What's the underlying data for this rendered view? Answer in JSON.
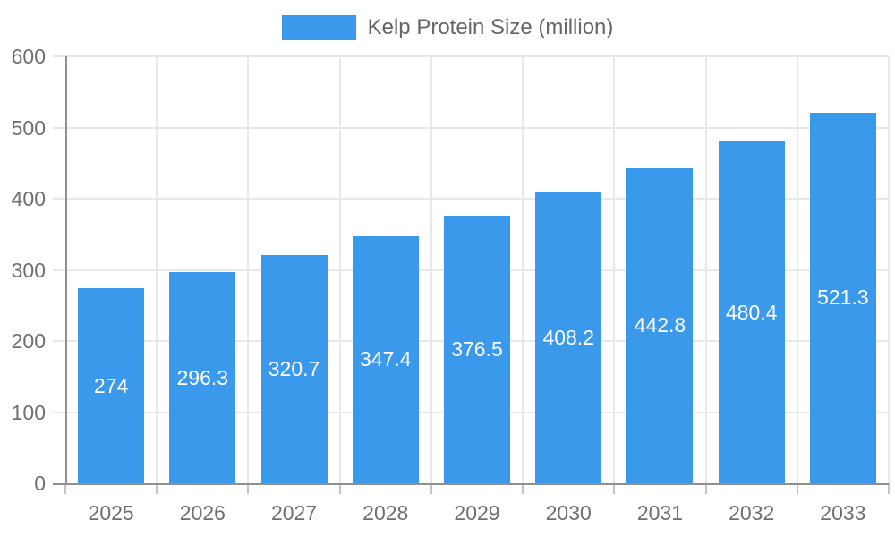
{
  "chart_data": {
    "type": "bar",
    "title": "",
    "xlabel": "",
    "ylabel": "",
    "legend": {
      "label": "Kelp Protein Size (million)",
      "position": "top"
    },
    "categories": [
      "2025",
      "2026",
      "2027",
      "2028",
      "2029",
      "2030",
      "2031",
      "2032",
      "2033"
    ],
    "series": [
      {
        "name": "Kelp Protein Size (million)",
        "values": [
          274,
          296.3,
          320.7,
          347.4,
          376.5,
          408.2,
          442.8,
          480.4,
          521.3
        ]
      }
    ],
    "value_labels": [
      "274",
      "296.3",
      "320.7",
      "347.4",
      "376.5",
      "408.2",
      "442.8",
      "480.4",
      "521.3"
    ],
    "ylim": [
      0,
      600
    ],
    "yticks": [
      0,
      100,
      200,
      300,
      400,
      500,
      600
    ],
    "grid": true,
    "colors": {
      "bar": "#3b99ec",
      "axis_line": "#8f8f8f",
      "gridline": "#e8e8e8",
      "tick": "#c4c4c4",
      "axis_text": "#6f6f6f",
      "legend_text": "#666666",
      "value_text": "#ffffff",
      "background": "#ffffff"
    }
  }
}
